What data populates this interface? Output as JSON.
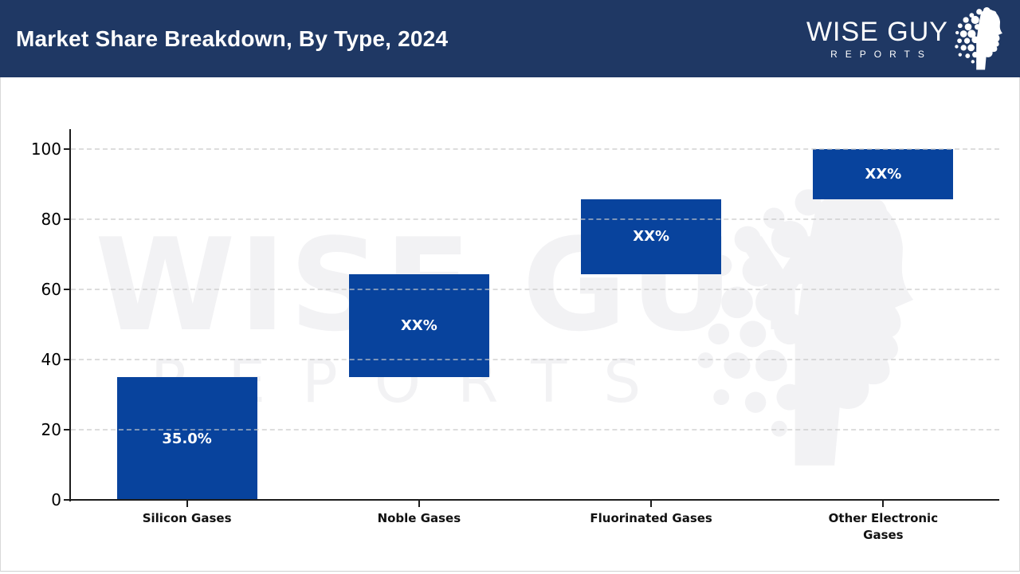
{
  "header": {
    "title": "Market Share Breakdown, By Type, 2024",
    "logo": {
      "line1": "WISE GUY",
      "line2": "REPORTS"
    }
  },
  "watermark": {
    "line1": "WISE GUY",
    "line2": "REPORTS"
  },
  "colors": {
    "header_bg": "#1f3864",
    "bar": "#08439d",
    "grid": "#c9c9c9",
    "axis": "#1c1c1c",
    "watermark": "#f2f2f4",
    "bar_label": "#ffffff"
  },
  "chart_data": {
    "type": "bar",
    "subtype": "waterfall",
    "title": "Market Share Breakdown, By Type, 2024",
    "categories": [
      "Silicon Gases",
      "Noble Gases",
      "Fluorinated Gases",
      "Other Electronic Gases"
    ],
    "series": [
      {
        "name": "Market Share (%)",
        "segments": [
          {
            "category": "Silicon Gases",
            "start": 0,
            "end": 35,
            "label": "35.0%"
          },
          {
            "category": "Noble Gases",
            "start": 35,
            "end": 64.3,
            "label": "XX%"
          },
          {
            "category": "Fluorinated Gases",
            "start": 64.3,
            "end": 85.7,
            "label": "XX%"
          },
          {
            "category": "Other Electronic Gases",
            "start": 85.7,
            "end": 100,
            "label": "XX%"
          }
        ]
      }
    ],
    "xlabel": "",
    "ylabel": "",
    "ylim": [
      0,
      105
    ],
    "yticks": [
      0,
      20,
      40,
      60,
      80,
      100
    ],
    "grid": "dashed-horizontal",
    "legend": "none"
  }
}
